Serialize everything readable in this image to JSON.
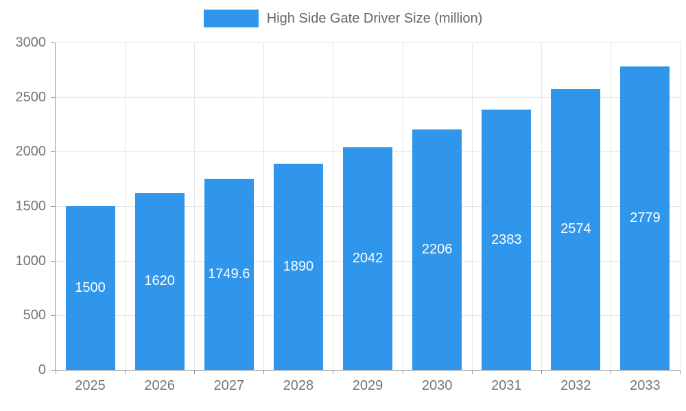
{
  "chart_data": {
    "type": "bar",
    "title": "High Side Gate Driver Size (million)",
    "categories": [
      "2025",
      "2026",
      "2027",
      "2028",
      "2029",
      "2030",
      "2031",
      "2032",
      "2033"
    ],
    "values": [
      1500,
      1620,
      1749.6,
      1890,
      2042,
      2206,
      2383,
      2574,
      2779
    ],
    "value_labels": [
      "1500",
      "1620",
      "1749.6",
      "1890",
      "2042",
      "2206",
      "2383",
      "2574",
      "2779"
    ],
    "xlabel": "",
    "ylabel": "",
    "ylim": [
      0,
      3000
    ],
    "ytick_step": 500,
    "ytick_labels": [
      "0",
      "500",
      "1000",
      "1500",
      "2000",
      "2500",
      "3000"
    ],
    "grid": true,
    "legend_position": "top",
    "bar_color": "#2F96EC",
    "value_label_color": "#ffffff",
    "axis_line_color": "#999999",
    "grid_color": "#e6e6e6",
    "tick_text_color": "#757575",
    "legend_text_color": "#666666"
  }
}
